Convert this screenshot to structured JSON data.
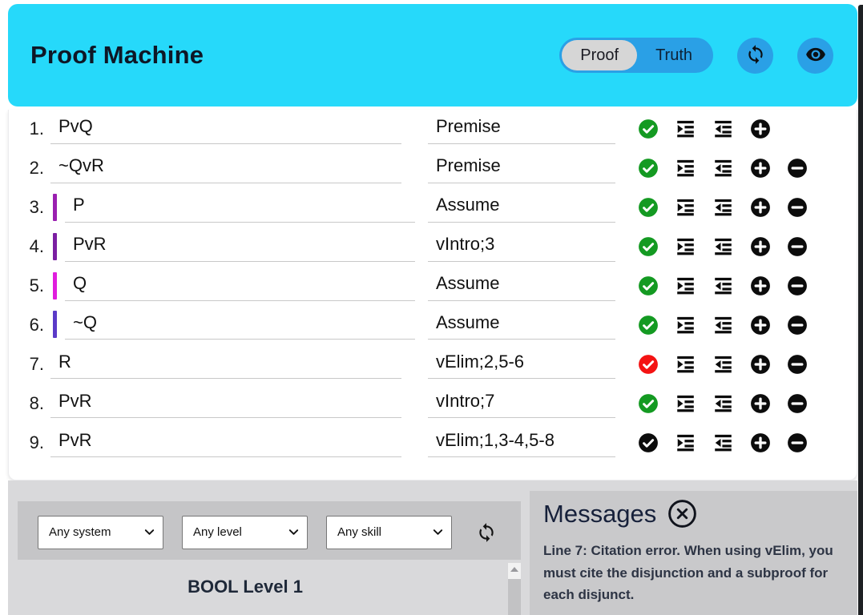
{
  "header": {
    "title": "Proof Machine",
    "toggle": {
      "left": "Proof",
      "right": "Truth",
      "selected": "Proof"
    },
    "colors": {
      "header_bg": "#26d9fa",
      "accent_blue": "#2aa0e6",
      "selected_pill": "#d6d6d6"
    }
  },
  "proof": {
    "status_colors": {
      "green": "#149a22",
      "red": "#f41313",
      "black": "#0c0c0c"
    },
    "lines": [
      {
        "num": "1.",
        "formula": "PvQ",
        "justification": "Premise",
        "status": "green",
        "bar": null,
        "removable": false
      },
      {
        "num": "2.",
        "formula": "~QvR",
        "justification": "Premise",
        "status": "green",
        "bar": null,
        "removable": true
      },
      {
        "num": "3.",
        "formula": "P",
        "justification": "Assume",
        "status": "green",
        "bar": "#9a1fb0",
        "removable": true
      },
      {
        "num": "4.",
        "formula": "PvR",
        "justification": "vIntro;3",
        "status": "green",
        "bar": "#7b1fa2",
        "removable": true
      },
      {
        "num": "5.",
        "formula": "Q",
        "justification": "Assume",
        "status": "green",
        "bar": "#e01dde",
        "removable": true
      },
      {
        "num": "6.",
        "formula": "~Q",
        "justification": "Assume",
        "status": "green",
        "bar": "#5b3ac8",
        "removable": true
      },
      {
        "num": "7.",
        "formula": "R",
        "justification": "vElim;2,5-6",
        "status": "red",
        "bar": null,
        "removable": true
      },
      {
        "num": "8.",
        "formula": "PvR",
        "justification": "vIntro;7",
        "status": "green",
        "bar": null,
        "removable": true
      },
      {
        "num": "9.",
        "formula": "PvR",
        "justification": "vElim;1,3-4,5-8",
        "status": "black",
        "bar": null,
        "removable": true
      }
    ]
  },
  "filters": {
    "selects": [
      {
        "name": "system",
        "value": "Any system"
      },
      {
        "name": "level",
        "value": "Any level"
      },
      {
        "name": "skill",
        "value": "Any skill"
      }
    ]
  },
  "levels": {
    "title": "BOOL Level 1"
  },
  "messages": {
    "title": "Messages",
    "body": "Line 7: Citation error. When using vElim, you must cite the disjunction and a subproof for each disjunct."
  }
}
